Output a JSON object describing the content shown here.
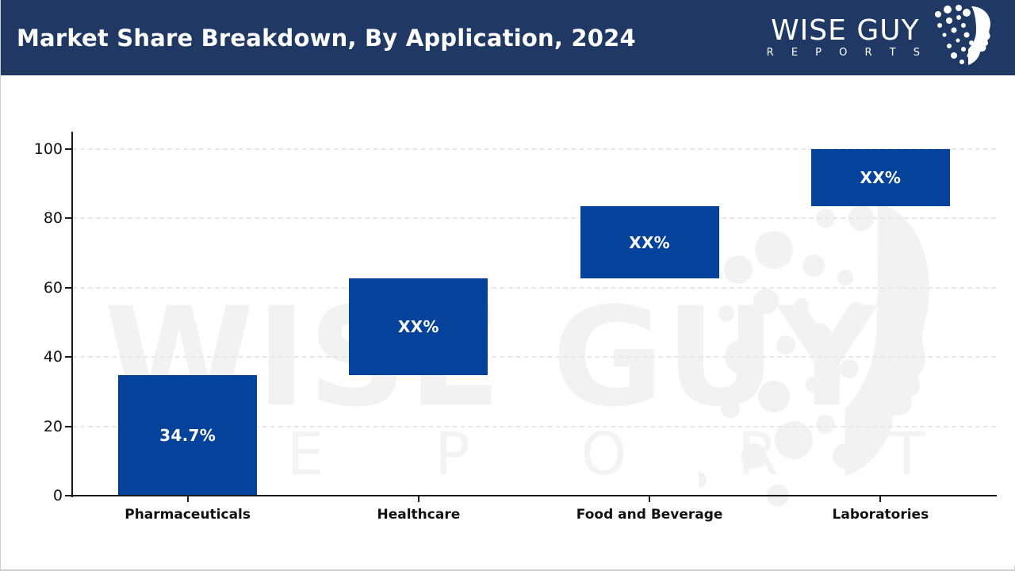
{
  "header": {
    "title": "Market Share Breakdown, By Application, 2024",
    "background_color": "#1f3864",
    "logo": {
      "name": "WISE GUY",
      "sub": "R E P O R T S",
      "face_icon": "dotted-head-profile"
    }
  },
  "watermark": {
    "big": "WISE GUY",
    "sub": "R E P O R T S"
  },
  "chart_data": {
    "type": "bar",
    "subtype": "waterfall",
    "title": "Market Share Breakdown, By Application, 2024",
    "categories": [
      "Pharmaceuticals",
      "Healthcare",
      "Food and Beverage",
      "Laboratories"
    ],
    "segments": [
      {
        "category": "Pharmaceuticals",
        "start": 0,
        "end": 34.7,
        "label": "34.7%"
      },
      {
        "category": "Healthcare",
        "start": 34.7,
        "end": 62.6,
        "label": "XX%"
      },
      {
        "category": "Food and Beverage",
        "start": 62.6,
        "end": 83.4,
        "label": "XX%"
      },
      {
        "category": "Laboratories",
        "start": 83.4,
        "end": 100,
        "label": "XX%"
      }
    ],
    "xlabel": "",
    "ylabel": "",
    "ylim": [
      0,
      100
    ],
    "yticks": [
      0,
      20,
      40,
      60,
      80,
      100
    ],
    "grid": true,
    "grid_style": "dashed",
    "legend": false,
    "bar_color": "#05429b",
    "bar_label_color": "#ffffff",
    "axis_color": "#1a1a1a"
  }
}
